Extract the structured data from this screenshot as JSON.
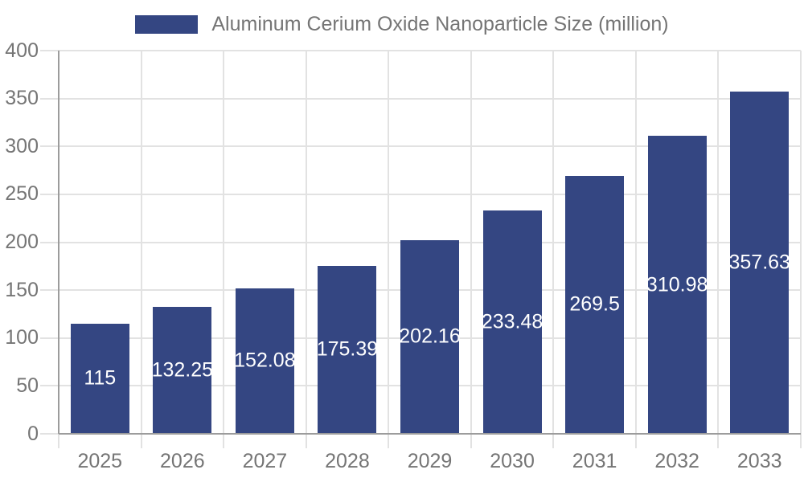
{
  "chart_data": {
    "type": "bar",
    "title": "Aluminum Cerium Oxide Nanoparticle Size (million)",
    "legend_position": "top",
    "categories": [
      "2025",
      "2026",
      "2027",
      "2028",
      "2029",
      "2030",
      "2031",
      "2032",
      "2033"
    ],
    "values": [
      115,
      132.25,
      152.08,
      175.39,
      202.16,
      233.48,
      269.5,
      310.98,
      357.63
    ],
    "value_labels": [
      "115",
      "132.25",
      "152.08",
      "175.39",
      "202.16",
      "233.48",
      "269.5",
      "310.98",
      "357.63"
    ],
    "xlabel": "",
    "ylabel": "",
    "ylim": [
      0,
      400
    ],
    "yticks": [
      0,
      50,
      100,
      150,
      200,
      250,
      300,
      350,
      400
    ],
    "grid": true,
    "bar_color": "#344682",
    "value_label_color": "#ffffff",
    "grid_color": "#e2e2e2",
    "axis_color": "#9c9c9c",
    "tick_label_color": "#757575",
    "title_color": "#757575"
  }
}
